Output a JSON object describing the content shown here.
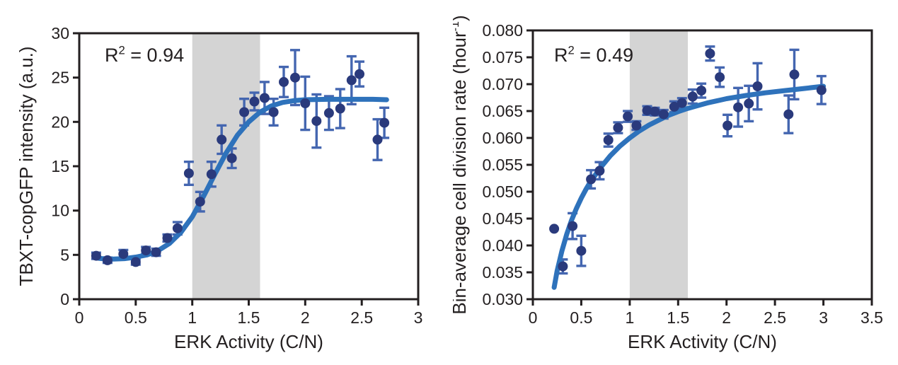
{
  "figure": {
    "background": "#ffffff",
    "colors": {
      "marker": "#2a3a7c",
      "error_bar": "#4466b0",
      "curve": "#2e72bb",
      "band": "#d4d4d4",
      "axis": "#231f20",
      "text": "#231f20"
    }
  },
  "chart_data": [
    {
      "type": "scatter",
      "panel": "left",
      "r_squared_label": "R² = 0.94",
      "xlabel": "ERK Activity (C/N)",
      "ylabel": "TBXT-copGFP intensity (a.u.)",
      "xlim": [
        0,
        3
      ],
      "ylim": [
        0,
        30
      ],
      "xtick_labels": [
        "0",
        "0.5",
        "1",
        "1.5",
        "2",
        "2.5",
        "3"
      ],
      "ytick_labels": [
        "0",
        "5",
        "10",
        "15",
        "20",
        "25",
        "30"
      ],
      "shaded_band_x": [
        1.0,
        1.6
      ],
      "grid": false,
      "legend": null,
      "points": [
        {
          "x": 0.15,
          "y": 4.9,
          "e": 0.35
        },
        {
          "x": 0.25,
          "y": 4.4,
          "e": 0.3
        },
        {
          "x": 0.39,
          "y": 5.1,
          "e": 0.45
        },
        {
          "x": 0.5,
          "y": 4.2,
          "e": 0.3
        },
        {
          "x": 0.59,
          "y": 5.5,
          "e": 0.4
        },
        {
          "x": 0.68,
          "y": 5.3,
          "e": 0.4
        },
        {
          "x": 0.78,
          "y": 6.9,
          "e": 0.4
        },
        {
          "x": 0.87,
          "y": 8.0,
          "e": 0.7
        },
        {
          "x": 0.97,
          "y": 14.2,
          "e": 1.3
        },
        {
          "x": 1.07,
          "y": 11.0,
          "e": 1.1
        },
        {
          "x": 1.17,
          "y": 14.1,
          "e": 1.4
        },
        {
          "x": 1.26,
          "y": 18.0,
          "e": 1.6
        },
        {
          "x": 1.35,
          "y": 15.9,
          "e": 1.1
        },
        {
          "x": 1.46,
          "y": 21.1,
          "e": 1.5
        },
        {
          "x": 1.55,
          "y": 22.3,
          "e": 1.0
        },
        {
          "x": 1.64,
          "y": 22.7,
          "e": 1.8
        },
        {
          "x": 1.72,
          "y": 21.1,
          "e": 1.5
        },
        {
          "x": 1.81,
          "y": 24.5,
          "e": 1.7
        },
        {
          "x": 1.91,
          "y": 25.0,
          "e": 3.1
        },
        {
          "x": 2.0,
          "y": 22.1,
          "e": 3.0
        },
        {
          "x": 2.1,
          "y": 20.1,
          "e": 3.0
        },
        {
          "x": 2.21,
          "y": 21.0,
          "e": 1.9
        },
        {
          "x": 2.31,
          "y": 21.5,
          "e": 2.2
        },
        {
          "x": 2.41,
          "y": 24.7,
          "e": 2.7
        },
        {
          "x": 2.48,
          "y": 25.4,
          "e": 1.4
        },
        {
          "x": 2.64,
          "y": 18.0,
          "e": 2.3
        },
        {
          "x": 2.7,
          "y": 19.9,
          "e": 1.7
        }
      ],
      "fit_curve": [
        [
          0.15,
          4.65
        ],
        [
          0.2,
          4.58
        ],
        [
          0.3,
          4.52
        ],
        [
          0.4,
          4.58
        ],
        [
          0.5,
          4.75
        ],
        [
          0.6,
          5.0
        ],
        [
          0.7,
          5.5
        ],
        [
          0.8,
          6.3
        ],
        [
          0.9,
          7.55
        ],
        [
          1.0,
          9.3
        ],
        [
          1.1,
          11.6
        ],
        [
          1.2,
          14.1
        ],
        [
          1.3,
          16.5
        ],
        [
          1.4,
          18.5
        ],
        [
          1.5,
          20.0
        ],
        [
          1.6,
          21.1
        ],
        [
          1.7,
          21.8
        ],
        [
          1.8,
          22.2
        ],
        [
          1.9,
          22.4
        ],
        [
          2.0,
          22.5
        ],
        [
          2.2,
          22.55
        ],
        [
          2.4,
          22.55
        ],
        [
          2.6,
          22.55
        ],
        [
          2.72,
          22.5
        ]
      ]
    },
    {
      "type": "scatter",
      "panel": "right",
      "r_squared_label": "R² = 0.49",
      "xlabel": "ERK Activity (C/N)",
      "ylabel": "Bin-average cell division rate (hour⁻¹)",
      "xlim": [
        0,
        3.5
      ],
      "ylim": [
        0.03,
        0.08
      ],
      "xtick_labels": [
        "0",
        "0.5",
        "1",
        "1.5",
        "2",
        "2.5",
        "3",
        "3.5"
      ],
      "ytick_labels": [
        "0.030",
        "0.035",
        "0.040",
        "0.045",
        "0.050",
        "0.055",
        "0.060",
        "0.065",
        "0.070",
        "0.075",
        "0.080"
      ],
      "shaded_band_x": [
        1.0,
        1.6
      ],
      "grid": false,
      "legend": null,
      "points": [
        {
          "x": 0.22,
          "y": 0.0431,
          "e": 0
        },
        {
          "x": 0.31,
          "y": 0.0361,
          "e": 0.0013
        },
        {
          "x": 0.41,
          "y": 0.0436,
          "e": 0.0024
        },
        {
          "x": 0.5,
          "y": 0.039,
          "e": 0.0028
        },
        {
          "x": 0.6,
          "y": 0.0523,
          "e": 0.0017
        },
        {
          "x": 0.69,
          "y": 0.0539,
          "e": 0.0016
        },
        {
          "x": 0.78,
          "y": 0.0596,
          "e": 0.0012
        },
        {
          "x": 0.88,
          "y": 0.0619,
          "e": 0.001
        },
        {
          "x": 0.98,
          "y": 0.064,
          "e": 0.001
        },
        {
          "x": 1.07,
          "y": 0.0623,
          "e": 0.0008
        },
        {
          "x": 1.18,
          "y": 0.0651,
          "e": 0.0008
        },
        {
          "x": 1.26,
          "y": 0.0649,
          "e": 0.0007
        },
        {
          "x": 1.35,
          "y": 0.0644,
          "e": 0.0008
        },
        {
          "x": 1.46,
          "y": 0.0658,
          "e": 0.001
        },
        {
          "x": 1.54,
          "y": 0.0665,
          "e": 0.0009
        },
        {
          "x": 1.65,
          "y": 0.0677,
          "e": 0.0013
        },
        {
          "x": 1.74,
          "y": 0.0688,
          "e": 0.0013
        },
        {
          "x": 1.83,
          "y": 0.0757,
          "e": 0.0013
        },
        {
          "x": 1.93,
          "y": 0.0713,
          "e": 0.0018
        },
        {
          "x": 2.01,
          "y": 0.0623,
          "e": 0.002
        },
        {
          "x": 2.12,
          "y": 0.0657,
          "e": 0.0036
        },
        {
          "x": 2.23,
          "y": 0.0664,
          "e": 0.0033
        },
        {
          "x": 2.32,
          "y": 0.0696,
          "e": 0.0043
        },
        {
          "x": 2.64,
          "y": 0.0644,
          "e": 0.0035
        },
        {
          "x": 2.7,
          "y": 0.0718,
          "e": 0.0046
        },
        {
          "x": 2.98,
          "y": 0.0689,
          "e": 0.0026
        }
      ],
      "fit_curve": [
        [
          0.22,
          0.0322
        ],
        [
          0.25,
          0.0352
        ],
        [
          0.3,
          0.039
        ],
        [
          0.35,
          0.0421
        ],
        [
          0.4,
          0.0447
        ],
        [
          0.45,
          0.0469
        ],
        [
          0.5,
          0.0488
        ],
        [
          0.55,
          0.0505
        ],
        [
          0.6,
          0.052
        ],
        [
          0.7,
          0.0545
        ],
        [
          0.8,
          0.0567
        ],
        [
          0.9,
          0.0585
        ],
        [
          1.0,
          0.06
        ],
        [
          1.1,
          0.0613
        ],
        [
          1.2,
          0.0624
        ],
        [
          1.3,
          0.0633
        ],
        [
          1.4,
          0.0642
        ],
        [
          1.5,
          0.0649
        ],
        [
          1.6,
          0.0655
        ],
        [
          1.7,
          0.066
        ],
        [
          1.8,
          0.0665
        ],
        [
          1.9,
          0.0669
        ],
        [
          2.0,
          0.0673
        ],
        [
          2.2,
          0.0679
        ],
        [
          2.4,
          0.0684
        ],
        [
          2.6,
          0.0688
        ],
        [
          2.8,
          0.0692
        ],
        [
          3.0,
          0.0696
        ]
      ]
    }
  ]
}
